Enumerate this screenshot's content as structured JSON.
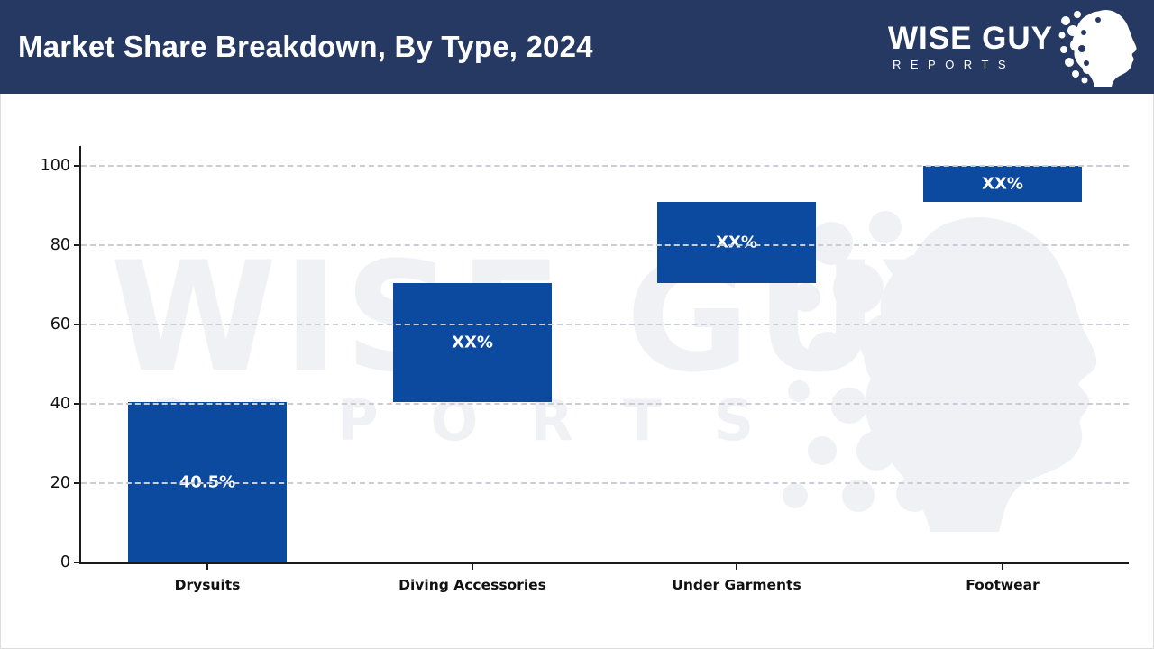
{
  "header": {
    "title": "Market Share Breakdown, By Type, 2024",
    "logo_line1": "WISE GUY",
    "logo_line2": "REPORTS"
  },
  "watermark": {
    "line1": "WISE GUY",
    "line2": "REPORTS"
  },
  "chart_data": {
    "type": "bar",
    "variant": "waterfall",
    "title": "Market Share Breakdown, By Type, 2024",
    "categories": [
      "Drysuits",
      "Diving Accessories",
      "Under Garments",
      "Footwear"
    ],
    "bars": [
      {
        "category": "Drysuits",
        "start": 0,
        "end": 40.5,
        "label": "40.5%"
      },
      {
        "category": "Diving Accessories",
        "start": 40.5,
        "end": 70.5,
        "label": "XX%"
      },
      {
        "category": "Under Garments",
        "start": 70.5,
        "end": 91,
        "label": "XX%"
      },
      {
        "category": "Footwear",
        "start": 91,
        "end": 100,
        "label": "XX%"
      }
    ],
    "y_ticks": [
      0,
      20,
      40,
      60,
      80,
      100
    ],
    "ylim": [
      0,
      105
    ],
    "xlabel": "",
    "ylabel": "",
    "grid": "horizontal-dashed",
    "legend": "none",
    "bar_color": "#0B4A9E",
    "value_label_color": "#FFFFFF",
    "header_bg_color": "#253963",
    "watermark_color": "#F0F1F4"
  }
}
